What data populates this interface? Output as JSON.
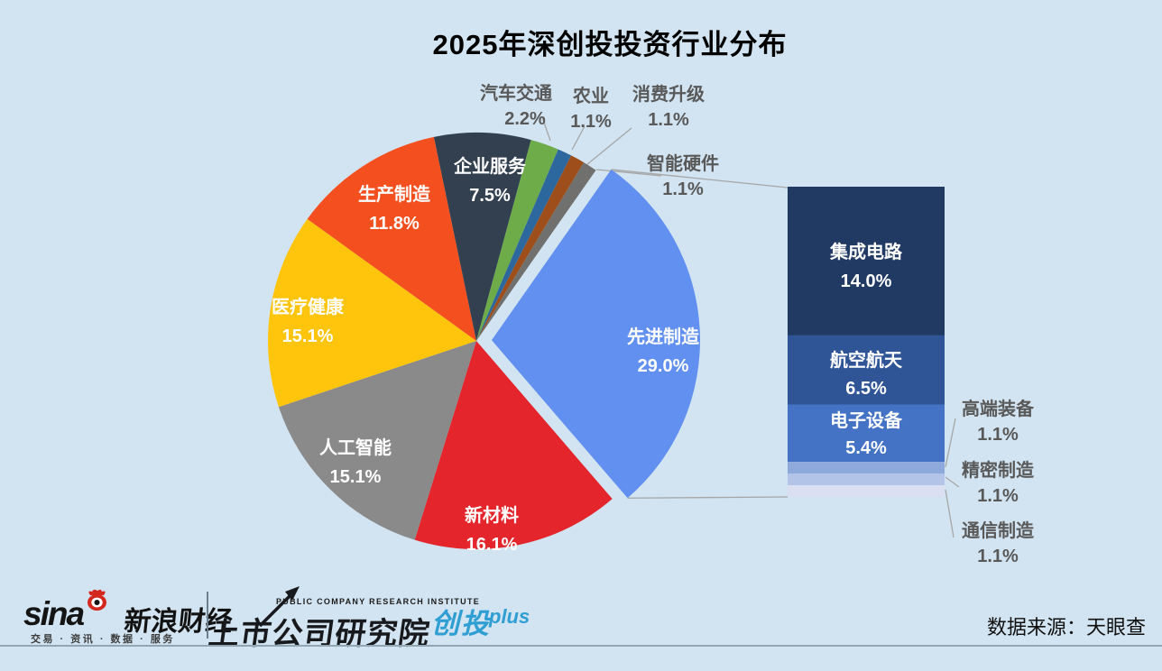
{
  "title": "2025年深创投投资行业分布",
  "chart_data": {
    "type": "pie",
    "variant": "bar-of-pie",
    "title": "2025年深创投投资行业分布",
    "unit": "percent",
    "legend": "none",
    "background": "#D2E4F1",
    "slices": [
      {
        "label": "先进制造",
        "value": 29.0,
        "color": "#6190F0",
        "exploded": true
      },
      {
        "label": "新材料",
        "value": 16.1,
        "color": "#E4252B"
      },
      {
        "label": "人工智能",
        "value": 15.1,
        "color": "#8A8A8A"
      },
      {
        "label": "医疗健康",
        "value": 15.1,
        "color": "#FFC40C"
      },
      {
        "label": "生产制造",
        "value": 11.8,
        "color": "#F4501F"
      },
      {
        "label": "企业服务",
        "value": 7.5,
        "color": "#32404F"
      },
      {
        "label": "汽车交通",
        "value": 2.2,
        "color": "#6EAC49"
      },
      {
        "label": "农业",
        "value": 1.1,
        "color": "#2C689E"
      },
      {
        "label": "消费升级",
        "value": 1.1,
        "color": "#9D4E1B"
      },
      {
        "label": "智能硬件",
        "value": 1.1,
        "color": "#70706E"
      }
    ],
    "breakout": {
      "parent": "先进制造",
      "position": "right",
      "segments": [
        {
          "label": "集成电路",
          "value": 14.0,
          "color": "#203A64"
        },
        {
          "label": "航空航天",
          "value": 6.5,
          "color": "#2F5597"
        },
        {
          "label": "电子设备",
          "value": 5.4,
          "color": "#4472C4"
        },
        {
          "label": "高端装备",
          "value": 1.1,
          "color": "#8EA9DB"
        },
        {
          "label": "精密制造",
          "value": 1.1,
          "color": "#B2C5E8"
        },
        {
          "label": "通信制造",
          "value": 1.1,
          "color": "#DADFF1"
        }
      ]
    }
  },
  "footer": {
    "sina": {
      "word": "sina",
      "brand": "新浪财经",
      "tagline": "交易 · 资讯 · 数据 · 服务"
    },
    "institute": {
      "en": "PUBLIC COMPANY RESEARCH INSTITUTE",
      "cn": "上市公司研究院",
      "brand_cn": "创投",
      "brand_en": "plus"
    },
    "source": "数据来源：天眼查"
  }
}
